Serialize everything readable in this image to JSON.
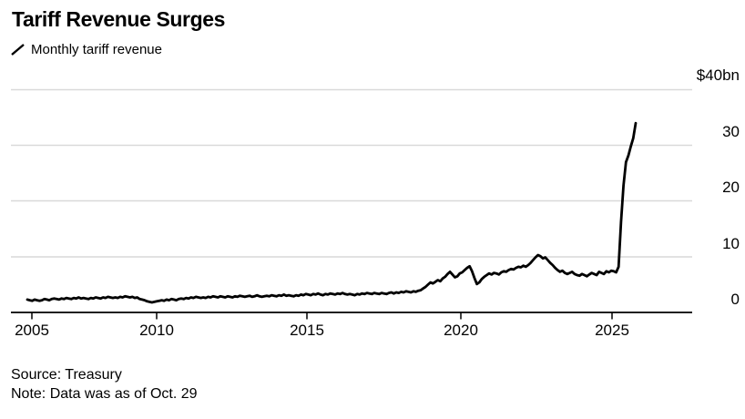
{
  "header": {
    "title": "Tariff Revenue Surges"
  },
  "legend": {
    "label": "Monthly tariff revenue",
    "marker": "slash-icon"
  },
  "colors": {
    "series": "#000000",
    "grid": "#d9d9d9",
    "axis": "#000000",
    "background": "#ffffff",
    "text": "#000000"
  },
  "footer": {
    "source": "Source: Treasury",
    "note": "Note: Data was as of Oct. 29"
  },
  "chart_data": {
    "type": "line",
    "title": "Tariff Revenue Surges",
    "unit": "USD billions per month",
    "ylabel": "$40bn",
    "ylim": [
      0,
      40
    ],
    "grid": "horizontal",
    "legend_position": "top-left",
    "y_ticks": [
      {
        "value": 40,
        "label": "$40bn"
      },
      {
        "value": 30,
        "label": "30"
      },
      {
        "value": 20,
        "label": "20"
      },
      {
        "value": 10,
        "label": "10"
      },
      {
        "value": 0,
        "label": "0"
      }
    ],
    "x_ticks": [
      "2005",
      "2010",
      "2015",
      "2020",
      "2025"
    ],
    "x_range": [
      "2005-01",
      "2025-10"
    ],
    "series": [
      {
        "name": "Monthly tariff revenue",
        "color": "#000000",
        "frequency": "monthly",
        "start": "2005-01",
        "end": "2025-10",
        "values": [
          2.3,
          2.2,
          2.1,
          2.3,
          2.2,
          2.1,
          2.2,
          2.4,
          2.3,
          2.2,
          2.4,
          2.5,
          2.4,
          2.3,
          2.5,
          2.4,
          2.6,
          2.5,
          2.4,
          2.6,
          2.5,
          2.7,
          2.5,
          2.6,
          2.5,
          2.4,
          2.6,
          2.5,
          2.7,
          2.6,
          2.5,
          2.7,
          2.6,
          2.8,
          2.7,
          2.6,
          2.7,
          2.6,
          2.8,
          2.7,
          2.9,
          2.8,
          2.7,
          2.8,
          2.6,
          2.7,
          2.4,
          2.3,
          2.2,
          2.0,
          1.9,
          1.8,
          1.9,
          2.0,
          2.1,
          2.2,
          2.1,
          2.3,
          2.2,
          2.4,
          2.3,
          2.2,
          2.4,
          2.5,
          2.4,
          2.6,
          2.5,
          2.7,
          2.6,
          2.8,
          2.7,
          2.6,
          2.7,
          2.6,
          2.8,
          2.7,
          2.9,
          2.8,
          2.7,
          2.9,
          2.8,
          2.7,
          2.9,
          2.8,
          2.7,
          2.9,
          2.8,
          3.0,
          2.9,
          2.8,
          2.9,
          3.0,
          2.8,
          2.9,
          3.1,
          2.9,
          2.8,
          2.9,
          3.0,
          2.9,
          3.1,
          3.0,
          2.9,
          3.1,
          3.0,
          3.2,
          3.0,
          3.1,
          3.0,
          2.9,
          3.1,
          3.0,
          3.2,
          3.1,
          3.3,
          3.2,
          3.1,
          3.3,
          3.2,
          3.4,
          3.2,
          3.1,
          3.3,
          3.2,
          3.4,
          3.3,
          3.2,
          3.4,
          3.3,
          3.5,
          3.3,
          3.2,
          3.3,
          3.2,
          3.1,
          3.3,
          3.2,
          3.4,
          3.3,
          3.5,
          3.4,
          3.3,
          3.5,
          3.4,
          3.3,
          3.5,
          3.4,
          3.3,
          3.5,
          3.6,
          3.4,
          3.6,
          3.5,
          3.7,
          3.6,
          3.8,
          3.7,
          3.6,
          3.8,
          3.7,
          3.9,
          4.0,
          4.3,
          4.6,
          5.0,
          5.4,
          5.2,
          5.5,
          5.8,
          5.6,
          6.1,
          6.4,
          6.9,
          7.3,
          6.8,
          6.3,
          6.5,
          7.0,
          7.2,
          7.6,
          8.0,
          8.3,
          7.4,
          6.2,
          5.1,
          5.4,
          6.0,
          6.4,
          6.7,
          7.0,
          6.8,
          7.1,
          7.0,
          6.8,
          7.2,
          7.4,
          7.3,
          7.6,
          7.8,
          7.7,
          8.0,
          8.2,
          8.1,
          8.4,
          8.2,
          8.5,
          8.9,
          9.4,
          9.9,
          10.3,
          10.1,
          9.7,
          9.9,
          9.4,
          8.9,
          8.5,
          8.0,
          7.6,
          7.3,
          7.5,
          7.1,
          6.9,
          7.1,
          7.3,
          6.9,
          6.7,
          6.6,
          6.9,
          6.7,
          6.5,
          6.8,
          7.1,
          6.9,
          6.7,
          7.3,
          7.1,
          6.9,
          7.4,
          7.2,
          7.5,
          7.4,
          7.2,
          8.2,
          16.3,
          22.8,
          27.0,
          28.2,
          29.8,
          31.3,
          34.0
        ]
      }
    ]
  }
}
